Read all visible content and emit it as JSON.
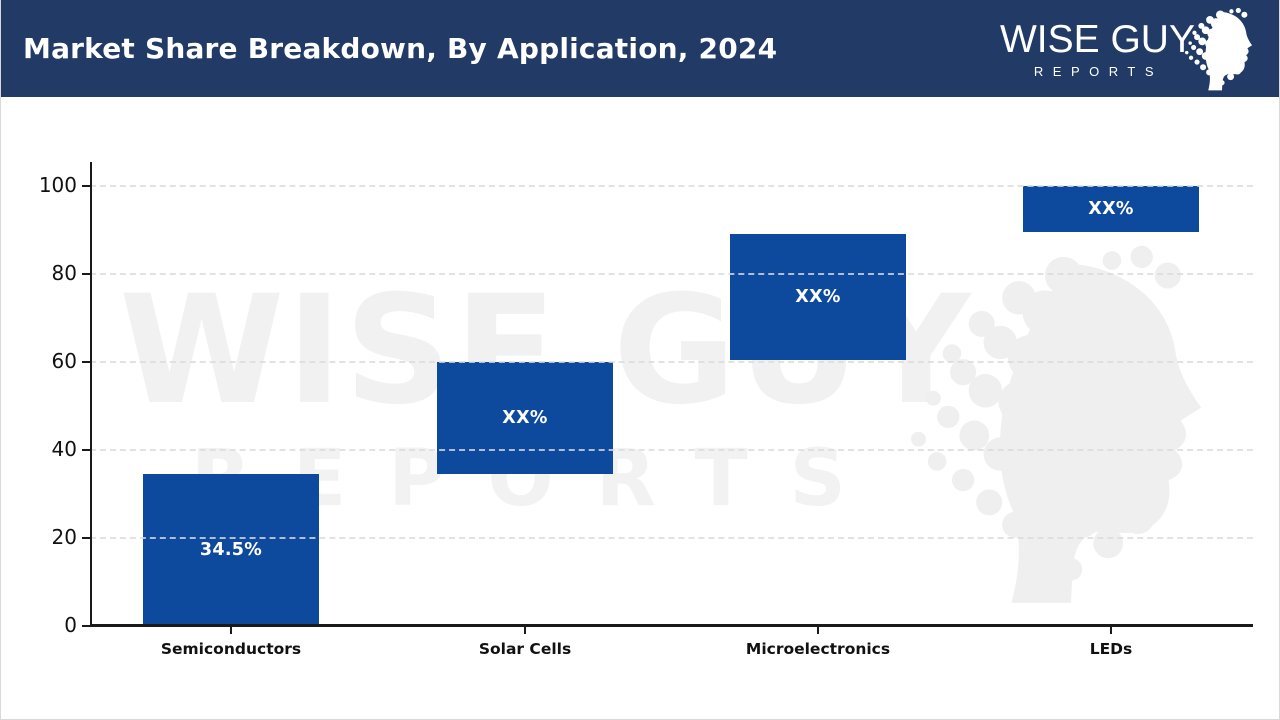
{
  "page": {
    "background": "#ffffff",
    "border_color": "#d9d9d9"
  },
  "header": {
    "background": "#213a66",
    "title": "Market Share Breakdown, By Application, 2024",
    "title_color": "#ffffff",
    "logo": {
      "wordmark": "WISE GUY",
      "sub_wordmark": "REPORTS"
    }
  },
  "watermark": {
    "wordmark": "WISE GUY",
    "sub_wordmark": "REPORTS",
    "color": "#f1f1f1"
  },
  "chart_data": {
    "type": "bar",
    "subtype": "floating_segment_waterfall",
    "title": "Market Share Breakdown, By Application, 2024",
    "categories": [
      "Semiconductors",
      "Solar Cells",
      "Microelectronics",
      "LEDs"
    ],
    "bars": [
      {
        "category": "Semiconductors",
        "start": 0,
        "end": 34.5,
        "label": "34.5%"
      },
      {
        "category": "Solar Cells",
        "start": 34.5,
        "end": 60,
        "label": "XX%"
      },
      {
        "category": "Microelectronics",
        "start": 60.5,
        "end": 89,
        "label": "XX%"
      },
      {
        "category": "LEDs",
        "start": 89.5,
        "end": 100,
        "label": "XX%"
      }
    ],
    "xlabel": "",
    "ylabel": "",
    "ylim": [
      0,
      100
    ],
    "yticks": [
      0,
      20,
      40,
      60,
      80,
      100
    ],
    "grid": {
      "axis": "y",
      "style": "dashed",
      "color": "#dcdcdc"
    },
    "bar_color": "#0d4a9e",
    "bar_label_color": "#ffffff",
    "axis_color": "#1a1a1a",
    "tick_label_color": "#111111",
    "legend": "none"
  }
}
